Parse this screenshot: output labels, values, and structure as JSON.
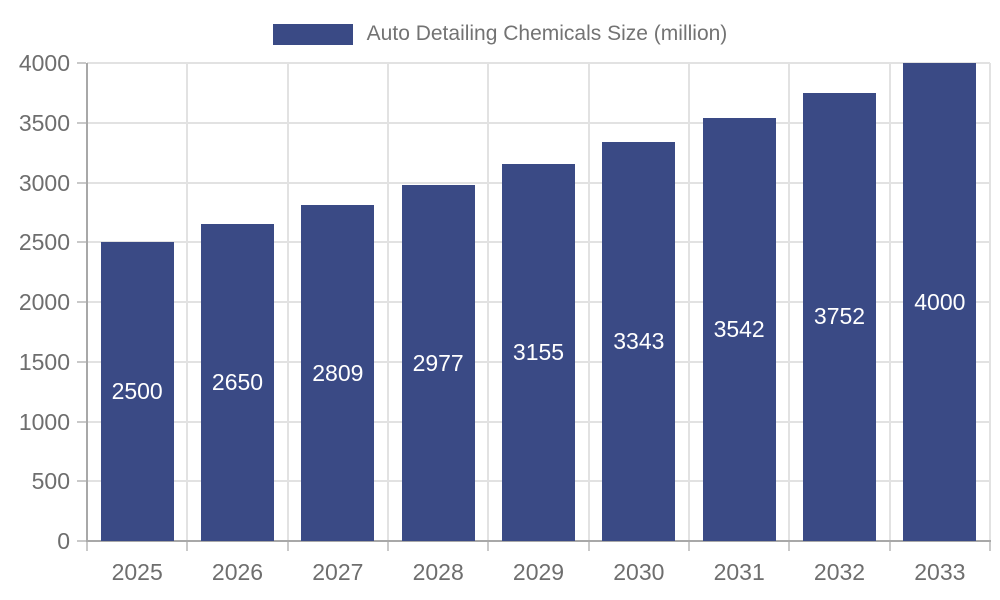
{
  "legend": {
    "label": "Auto Detailing Chemicals Size (million)",
    "swatch_color": "#3a4a85"
  },
  "chart_data": {
    "type": "bar",
    "title": "Auto Detailing Chemicals Size (million)",
    "categories": [
      "2025",
      "2026",
      "2027",
      "2028",
      "2029",
      "2030",
      "2031",
      "2032",
      "2033"
    ],
    "values": [
      2500,
      2650,
      2809,
      2977,
      3155,
      3343,
      3542,
      3752,
      4000
    ],
    "series_name": "Auto Detailing Chemicals Size (million)",
    "xlabel": "",
    "ylabel": "",
    "ylim": [
      0,
      4000
    ],
    "yticks": [
      0,
      500,
      1000,
      1500,
      2000,
      2500,
      3000,
      3500,
      4000
    ],
    "grid": true,
    "legend_position": "top-center",
    "bar_color": "#3a4a85",
    "value_label_color": "#ffffff",
    "value_label_position": "inside-center"
  },
  "colors": {
    "background": "#ffffff",
    "grid": "#e2e2e2",
    "axis": "#a8a8a8",
    "tick_mark": "#c9c9c9",
    "tick_text": "#6e6e6e",
    "legend_text": "#737373"
  }
}
